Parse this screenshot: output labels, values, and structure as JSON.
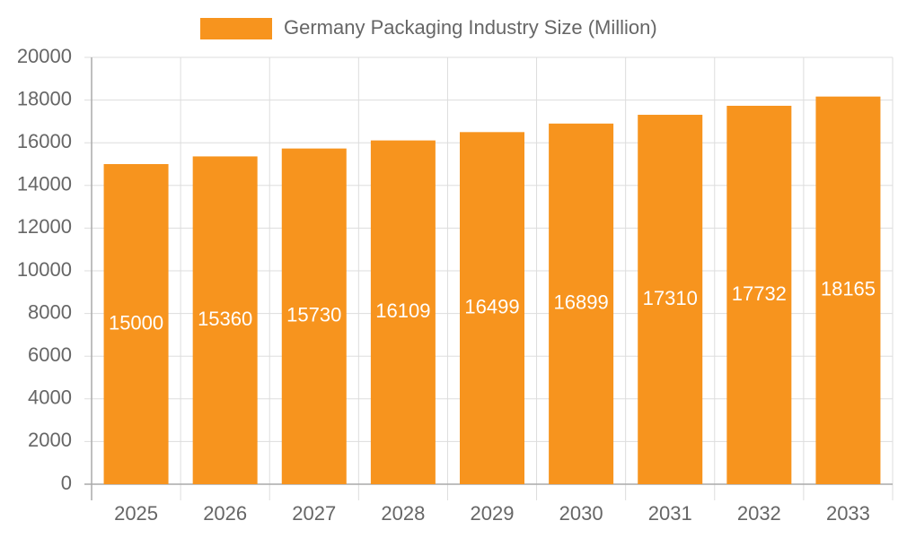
{
  "chart_data": {
    "type": "bar",
    "categories": [
      "2025",
      "2026",
      "2027",
      "2028",
      "2029",
      "2030",
      "2031",
      "2032",
      "2033"
    ],
    "series": [
      {
        "name": "Germany Packaging Industry Size (Million)",
        "color": "#f7941e",
        "values": [
          15000,
          15360,
          15730,
          16109,
          16499,
          16899,
          17310,
          17732,
          18165
        ]
      }
    ],
    "ylim": [
      0,
      20000
    ],
    "yticks": [
      0,
      2000,
      4000,
      6000,
      8000,
      10000,
      12000,
      14000,
      16000,
      18000,
      20000
    ],
    "grid": true,
    "legend": "top"
  }
}
